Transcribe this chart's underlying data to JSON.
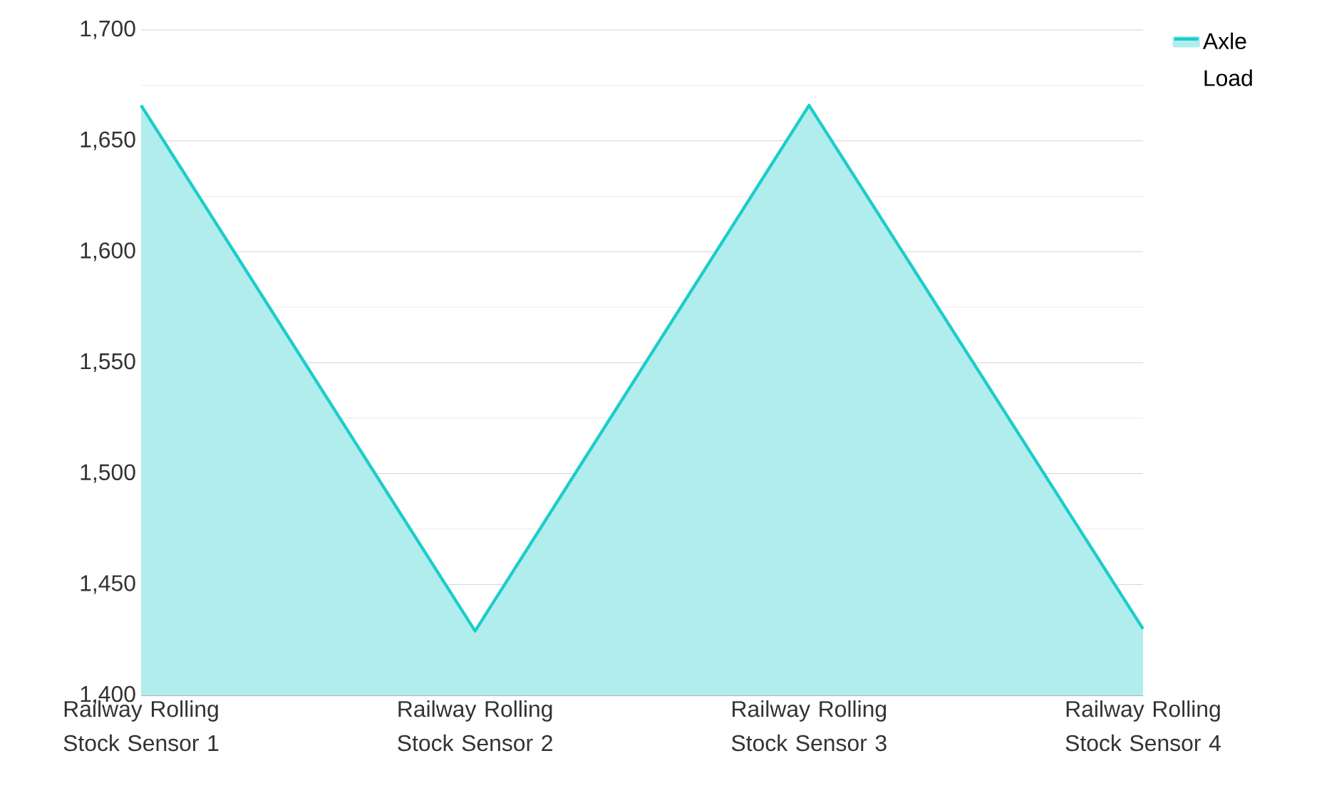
{
  "chart_data": {
    "type": "area",
    "categories": [
      "Railway Rolling Stock Sensor 1",
      "Railway Rolling Stock Sensor 2",
      "Railway Rolling Stock Sensor 3",
      "Railway Rolling Stock Sensor 4"
    ],
    "series": [
      {
        "name": "Axle Load",
        "color": "#1dcdca",
        "values": [
          1666,
          1429,
          1666,
          1430
        ]
      }
    ],
    "ylim": [
      1400,
      1700
    ],
    "yticks": [
      {
        "value": 1400,
        "label": "1,400"
      },
      {
        "value": 1425,
        "label": null
      },
      {
        "value": 1450,
        "label": "1,450"
      },
      {
        "value": 1475,
        "label": null
      },
      {
        "value": 1500,
        "label": "1,500"
      },
      {
        "value": 1525,
        "label": null
      },
      {
        "value": 1550,
        "label": "1,550"
      },
      {
        "value": 1575,
        "label": null
      },
      {
        "value": 1600,
        "label": "1,600"
      },
      {
        "value": 1625,
        "label": null
      },
      {
        "value": 1650,
        "label": "1,650"
      },
      {
        "value": 1675,
        "label": null
      },
      {
        "value": 1700,
        "label": "1,700"
      }
    ],
    "grid": "y",
    "legend": "top right"
  }
}
